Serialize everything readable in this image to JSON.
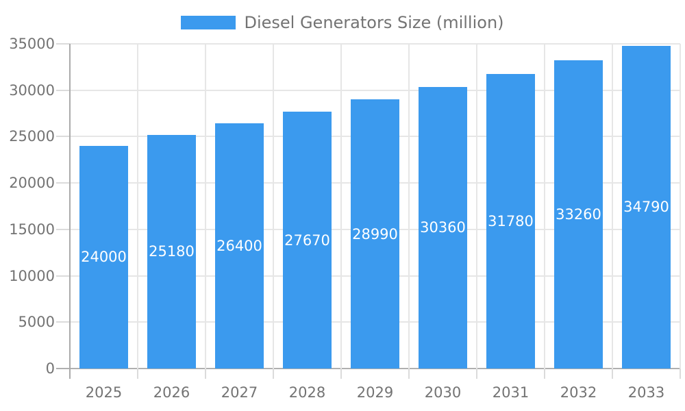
{
  "legend": {
    "label": "Diesel Generators Size (million)"
  },
  "chart_data": {
    "type": "bar",
    "title": "",
    "categories": [
      "2025",
      "2026",
      "2027",
      "2028",
      "2029",
      "2030",
      "2031",
      "2032",
      "2033"
    ],
    "series": [
      {
        "name": "Diesel Generators Size (million)",
        "values": [
          24000,
          25180,
          26400,
          27670,
          28990,
          30360,
          31780,
          33260,
          34790
        ]
      }
    ],
    "bar_value_labels": [
      "24000",
      "25180",
      "26400",
      "27670",
      "28990",
      "30360",
      "31780",
      "33260",
      "34790"
    ],
    "y_tick_labels": [
      "0",
      "5000",
      "10000",
      "15000",
      "20000",
      "25000",
      "30000",
      "35000"
    ],
    "xlabel": "",
    "ylabel": "",
    "ylim": [
      0,
      35000
    ],
    "ytick_step": 5000,
    "grid": true,
    "legend_position": "top-center",
    "value_label_position": "inside-center",
    "colors": {
      "bar": "#3B9AEE",
      "bar_label_text": "#FFFFFF",
      "axis_text": "#737373",
      "legend_text": "#737373",
      "grid_line": "#E6E6E6",
      "zero_line": "#B0B0B0",
      "axis_line": "#ABABAB",
      "tick_line": "#DBDBDB",
      "background": "#FFFFFF"
    }
  }
}
